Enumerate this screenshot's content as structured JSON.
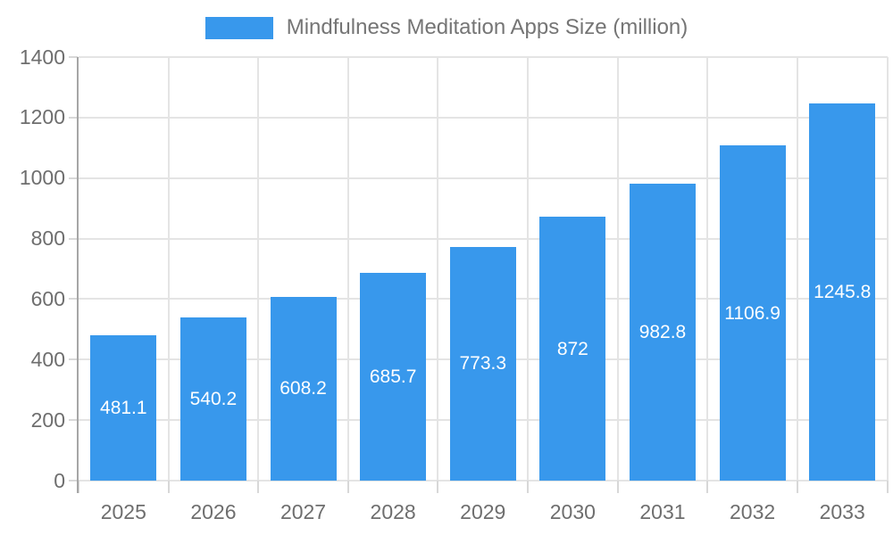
{
  "legend": {
    "label": "Mindfulness Meditation Apps Size (million)"
  },
  "chart_data": {
    "type": "bar",
    "title": "Mindfulness Meditation Apps Size (million)",
    "series_name": "Mindfulness Meditation Apps Size (million)",
    "categories": [
      "2025",
      "2026",
      "2027",
      "2028",
      "2029",
      "2030",
      "2031",
      "2032",
      "2033"
    ],
    "values": [
      481.1,
      540.2,
      608.2,
      685.7,
      773.3,
      872,
      982.8,
      1106.9,
      1245.8
    ],
    "value_labels": [
      "481.1",
      "540.2",
      "608.2",
      "685.7",
      "773.3",
      "872",
      "982.8",
      "1106.9",
      "1245.8"
    ],
    "xlabel": "",
    "ylabel": "",
    "ylim": [
      0,
      1400
    ],
    "yticks": [
      0,
      200,
      400,
      600,
      800,
      1000,
      1200,
      1400
    ],
    "grid": true,
    "legend_position": "top",
    "value_label_position": "inside-center",
    "colors": {
      "bar": "#3898EC",
      "legend_text": "#757575",
      "axis_label": "#6e6e6e",
      "gridline": "#e4e4e4",
      "axis_line": "#a6a6a6",
      "tick": "#d8d8d8",
      "value_label": "#ffffff",
      "background": "#ffffff"
    }
  }
}
